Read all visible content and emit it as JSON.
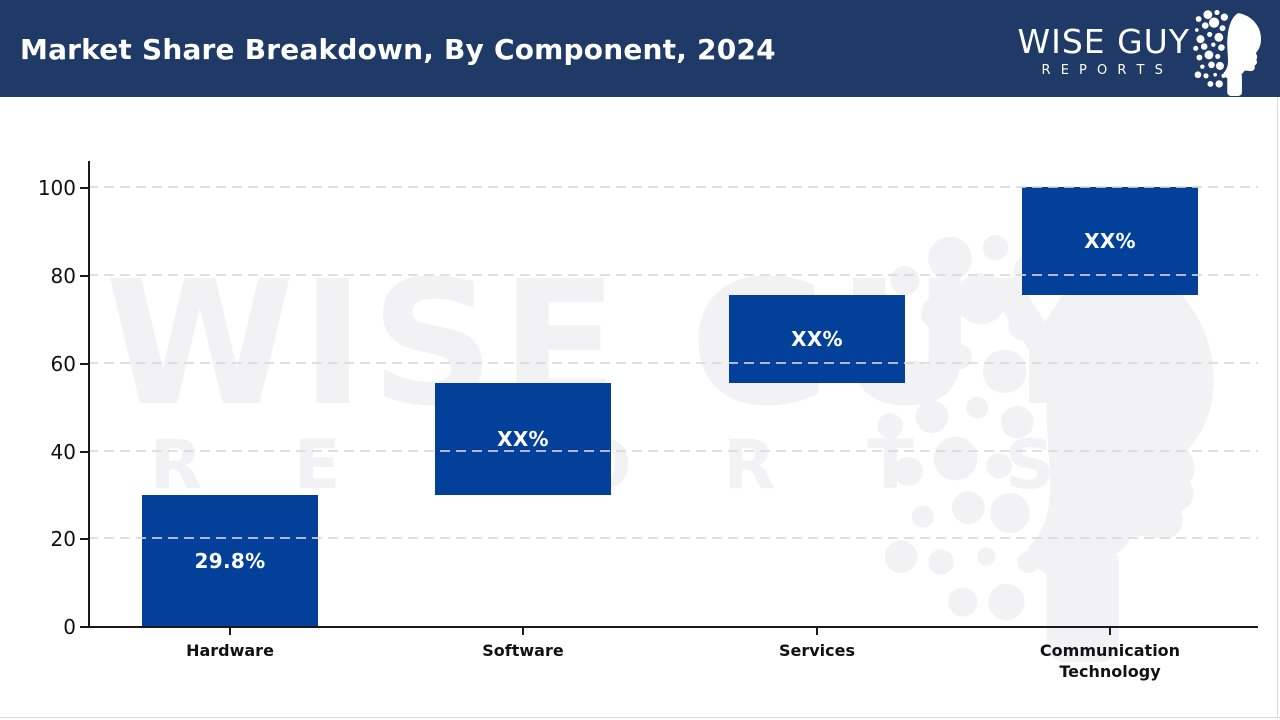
{
  "header": {
    "title": "Market Share Breakdown, By Component, 2024",
    "brand": {
      "name": "WISE GUY",
      "subtitle": "R E P O R T S"
    }
  },
  "watermark": {
    "line1": "WISE GUY",
    "line2": "R E P O R T S"
  },
  "colors": {
    "header_bg": "#1f3a66",
    "bar": "#03409a",
    "grid": "#d9d9d9",
    "axis": "#1a1a1a",
    "watermark": "#f2f2f4",
    "title_text": "#ffffff",
    "label_text": "#111111",
    "bar_label_text": "#ffffff"
  },
  "chart_data": {
    "type": "bar",
    "subtype": "waterfall",
    "title": "Market Share Breakdown, By Component, 2024",
    "xlabel": "",
    "ylabel": "",
    "categories": [
      "Hardware",
      "Software",
      "Services",
      "Communication Technology"
    ],
    "segments": [
      {
        "category": "Hardware",
        "start": 0,
        "end": 29.8,
        "value": 29.8,
        "label": "29.8%"
      },
      {
        "category": "Software",
        "start": 29.8,
        "end": 55.4,
        "value": 25.6,
        "label": "XX%"
      },
      {
        "category": "Services",
        "start": 55.4,
        "end": 75.5,
        "value": 20.1,
        "label": "XX%"
      },
      {
        "category": "Communication Technology",
        "start": 75.5,
        "end": 100,
        "value": 24.5,
        "label": "XX%"
      }
    ],
    "yticks": [
      0,
      20,
      40,
      60,
      80,
      100
    ],
    "ylim": [
      0,
      106
    ],
    "grid": "horizontal-dashed",
    "legend": "none",
    "bar_color": "#03409a",
    "notes": "masked values shown as XX%"
  }
}
